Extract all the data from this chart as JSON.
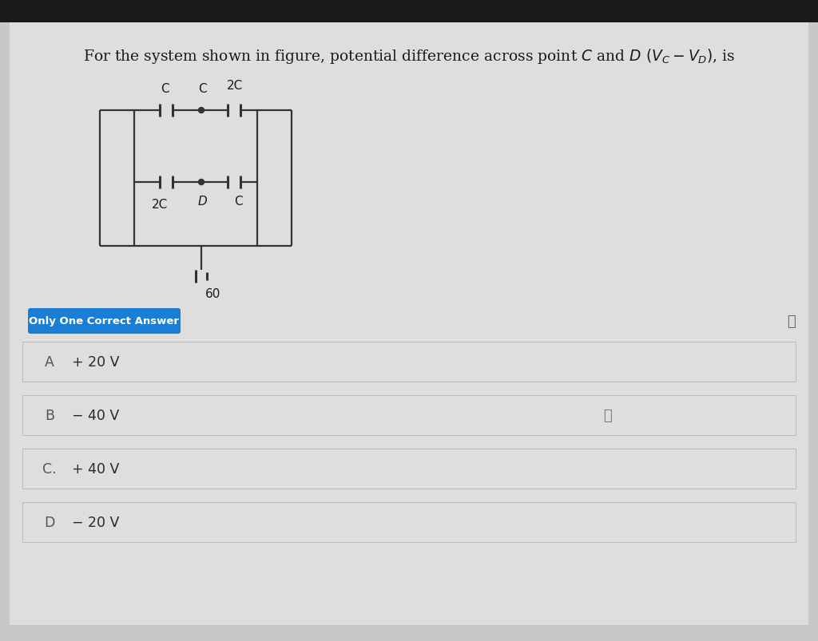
{
  "title_text": "For the system shown in figure, potential difference across point $C$ and $D$ $(V_C - V_D)$, is",
  "bg_color": "#c8c8c8",
  "content_bg": "#e0e0e0",
  "top_bar_color": "#1a1a1a",
  "answer_options": [
    {
      "label": "A",
      "text": "+ 20 V"
    },
    {
      "label": "B",
      "text": "- 40 V"
    },
    {
      "label": "C.",
      "text": "+ 40 V"
    },
    {
      "label": "D",
      "text": "- 20 V"
    }
  ],
  "button_text": "Only One Correct Answer",
  "button_color": "#1a7fd4",
  "button_text_color": "#ffffff",
  "wire_color": "#333333",
  "label_color": "#1a1a1a"
}
